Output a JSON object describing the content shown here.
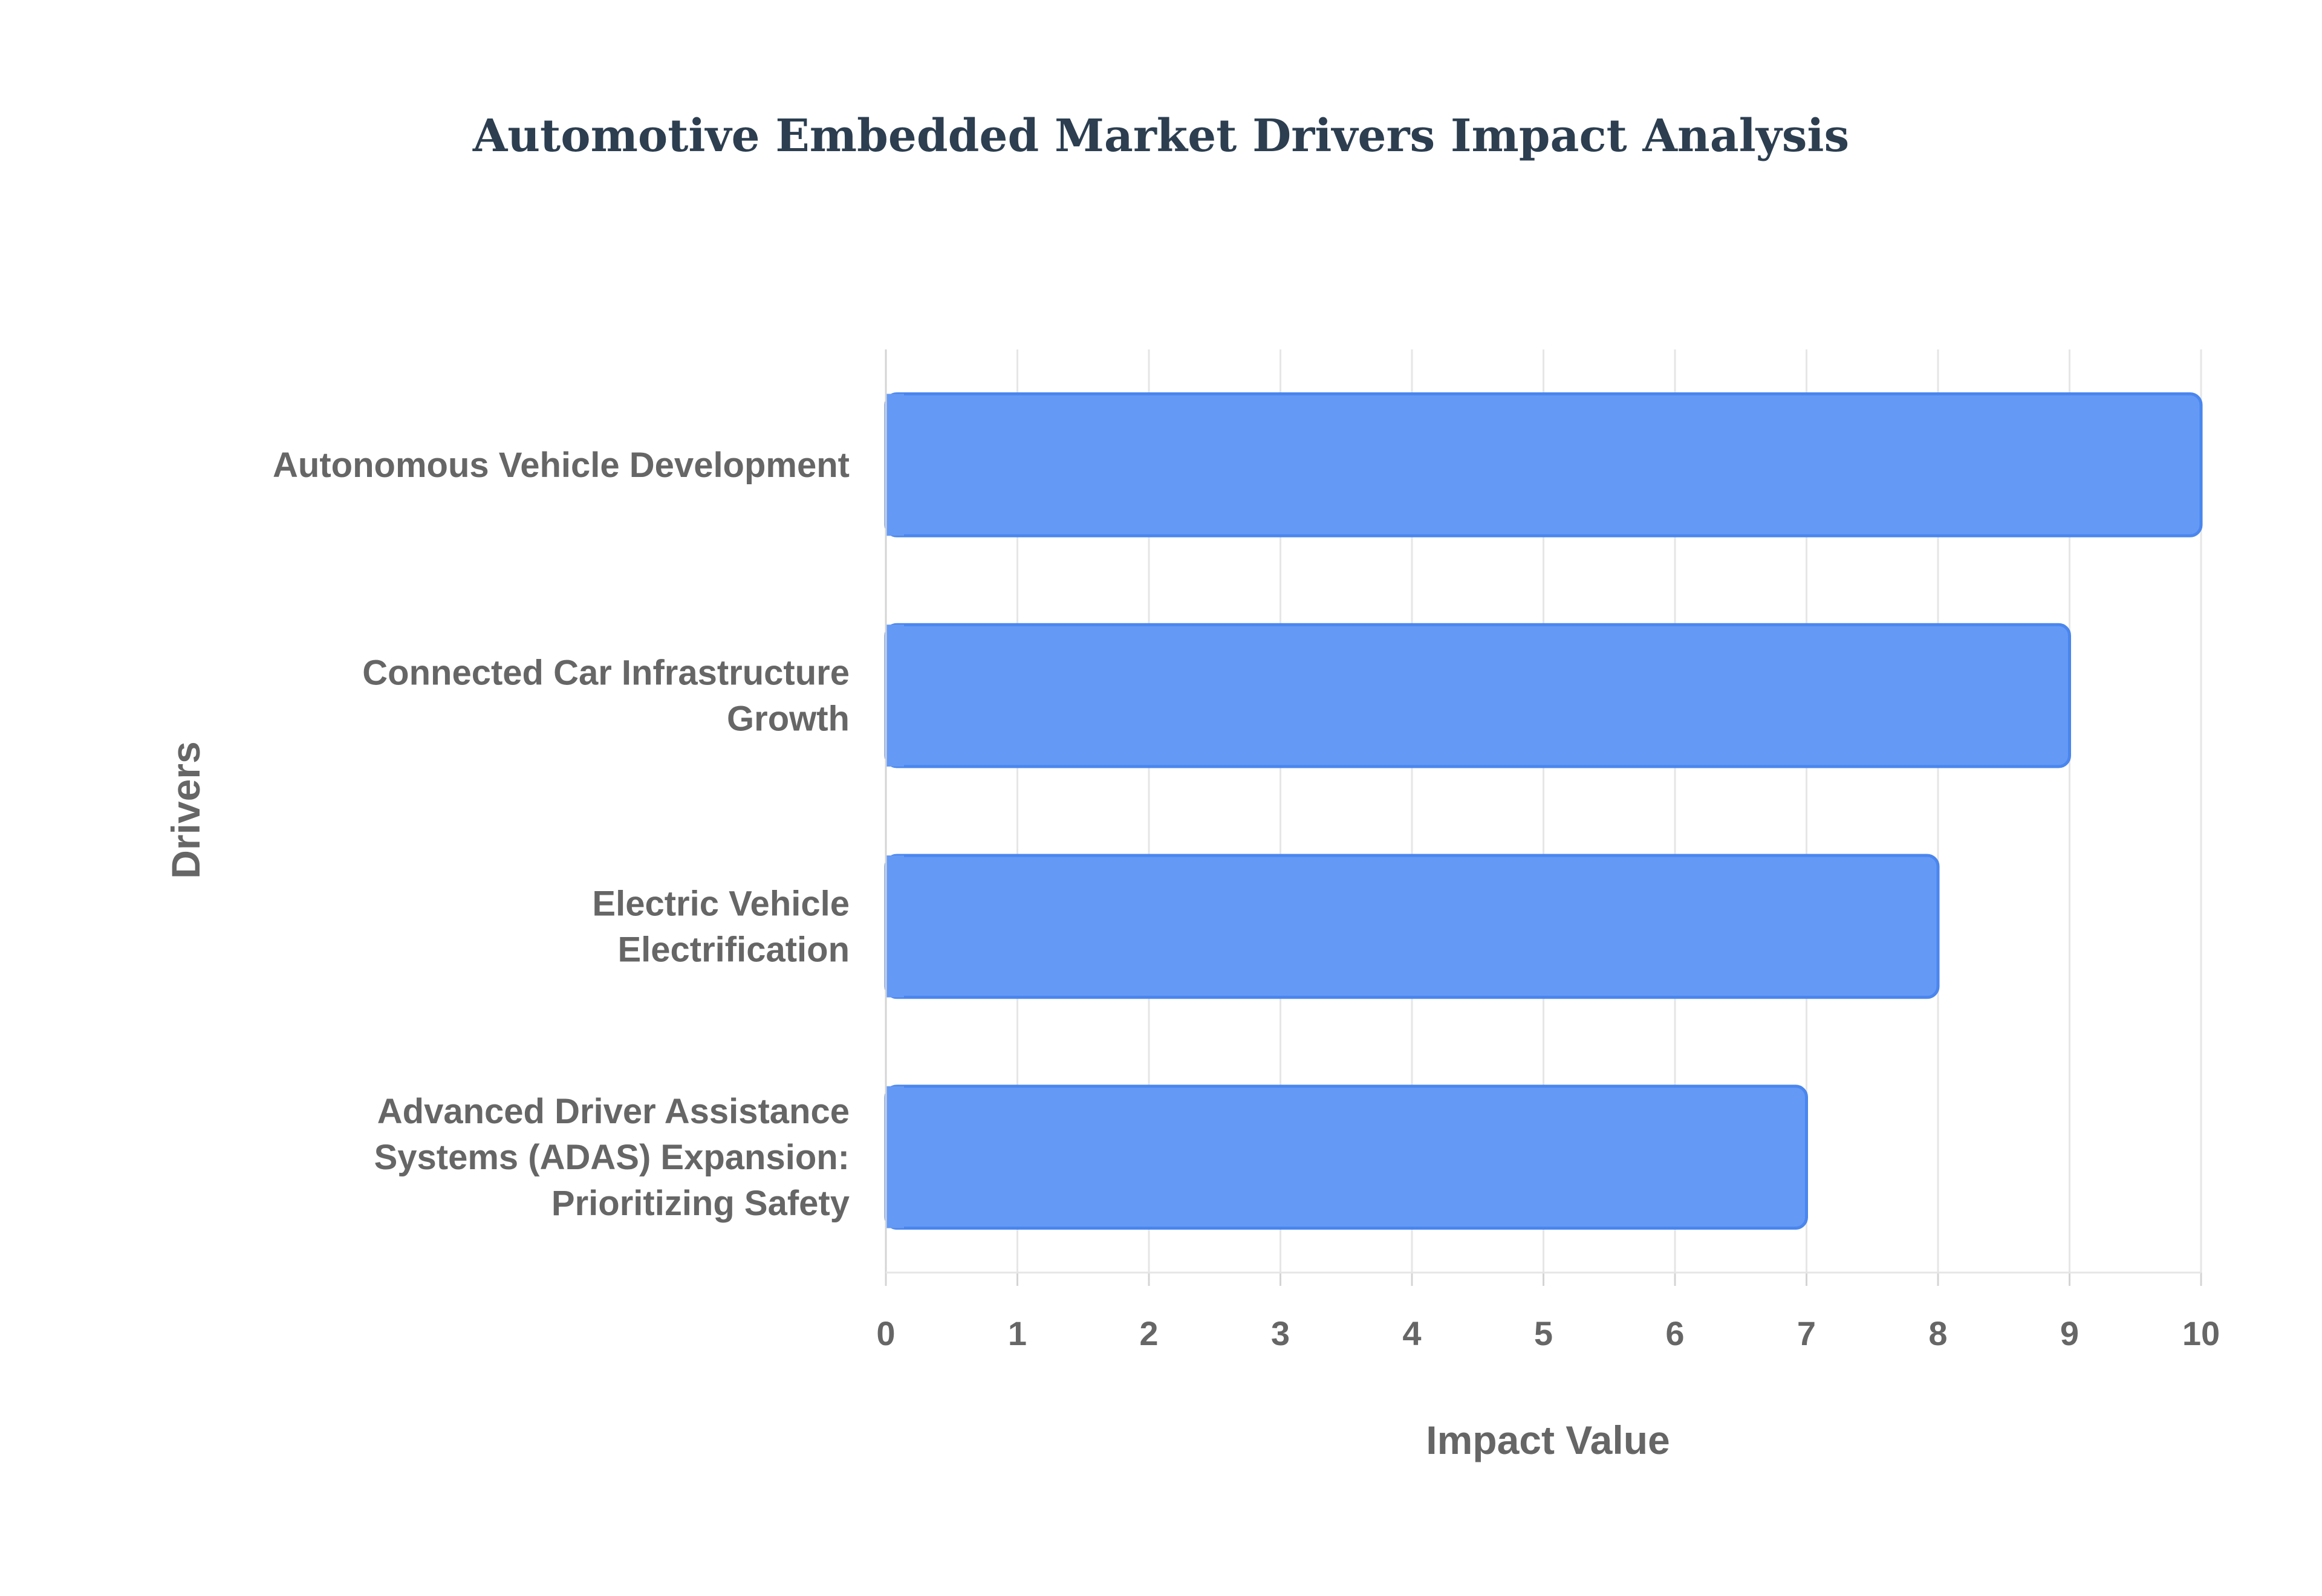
{
  "chart_data": {
    "type": "bar",
    "orientation": "horizontal",
    "title": "Automotive Embedded Market Drivers Impact Analysis",
    "xlabel": "Impact Value",
    "ylabel": "Drivers",
    "categories": [
      [
        "Autonomous Vehicle Development"
      ],
      [
        "Connected Car Infrastructure",
        "Growth"
      ],
      [
        "Electric Vehicle",
        "Electrification"
      ],
      [
        "Advanced Driver Assistance",
        "Systems (ADAS) Expansion:",
        "Prioritizing Safety"
      ]
    ],
    "values": [
      10,
      9,
      8,
      7
    ],
    "xlim": [
      0,
      10
    ],
    "xticks": [
      "0",
      "1",
      "2",
      "3",
      "4",
      "5",
      "6",
      "7",
      "8",
      "9",
      "10"
    ],
    "grid": true,
    "legend": "none",
    "colors": {
      "bar_fill": "#6499f5",
      "bar_stroke": "#4a86ee"
    }
  }
}
